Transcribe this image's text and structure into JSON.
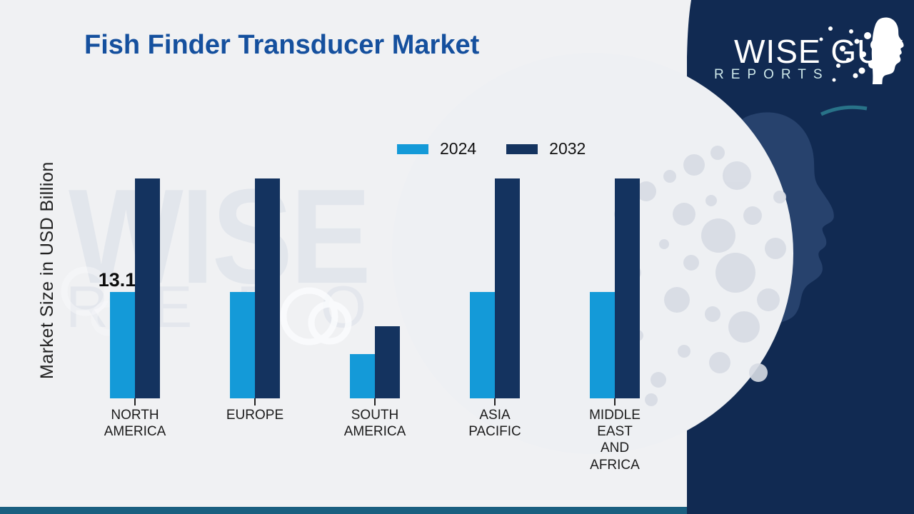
{
  "theme": {
    "background": "#f0f1f3",
    "title_blue": "#15509e",
    "bar_2024_blue": "#149ad8",
    "bar_2032_navy": "#14335f",
    "brand_blob_navy": "#112a52",
    "bottom_bar_teal": "#1a5f80",
    "watermark_gray": "#dbe0e9",
    "label_ink": "#1b1b1b"
  },
  "header": {
    "title": "Fish Finder Transducer Market"
  },
  "logo": {
    "line1": "WISE GUY",
    "line2": "REPORTS"
  },
  "watermark": {
    "line1": "WISE GUY",
    "line2": "REPORTS"
  },
  "chart_data": {
    "type": "bar",
    "title": "Fish Finder Transducer Market",
    "xlabel": "",
    "ylabel": "Market Size in USD Billion",
    "categories": [
      "NORTH\nAMERICA",
      "EUROPE",
      "SOUTH\nAMERICA",
      "ASIA\nPACIFIC",
      "MIDDLE\nEAST\nAND\nAFRICA"
    ],
    "series": [
      {
        "name": "2024",
        "color": "#149ad8",
        "values": [
          13.12,
          13.1,
          5.5,
          13.1,
          13.1
        ]
      },
      {
        "name": "2032",
        "color": "#14335f",
        "values": [
          27.1,
          27.1,
          8.9,
          27.1,
          27.1
        ]
      }
    ],
    "ylim": [
      0,
      28
    ],
    "grid": false,
    "legend_position": "top-center",
    "annotations": [
      {
        "series": "2024",
        "category_index": 0,
        "text": "13.12"
      }
    ]
  }
}
